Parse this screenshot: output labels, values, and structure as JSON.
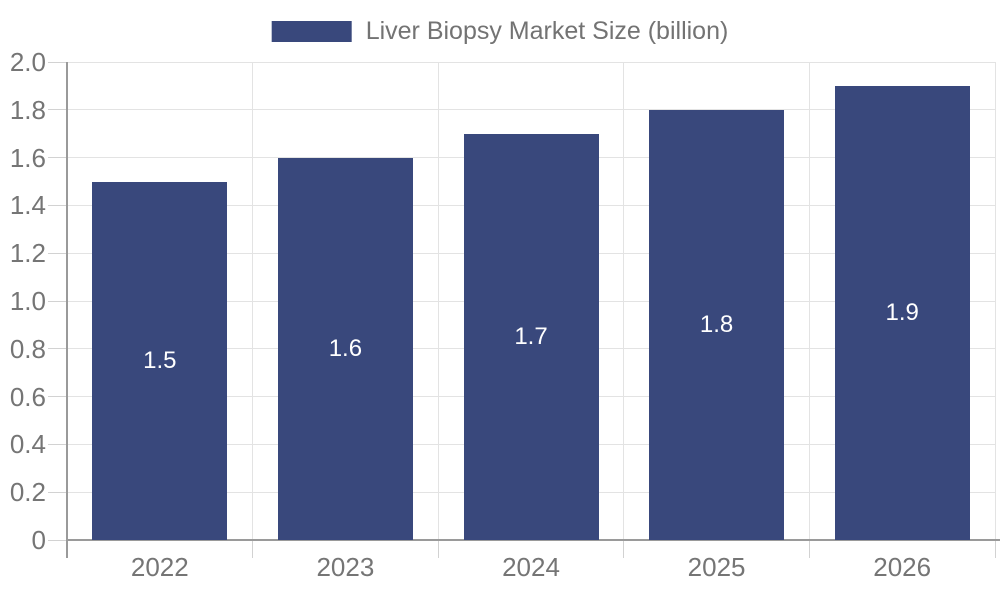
{
  "chart_data": {
    "type": "bar",
    "legend_label": "Liver Biopsy Market Size (billion)",
    "legend_position": "top-center",
    "categories": [
      "2022",
      "2023",
      "2024",
      "2025",
      "2026"
    ],
    "values": [
      1.5,
      1.6,
      1.7,
      1.8,
      1.9
    ],
    "bar_value_labels": [
      "1.5",
      "1.6",
      "1.7",
      "1.8",
      "1.9"
    ],
    "ylim": [
      0,
      2.0
    ],
    "ytick_values": [
      0,
      0.2,
      0.4,
      0.6,
      0.8,
      1.0,
      1.2,
      1.4,
      1.6,
      1.8,
      2.0
    ],
    "ytick_labels": [
      "0",
      "0.2",
      "0.4",
      "0.6",
      "0.8",
      "1.0",
      "1.2",
      "1.4",
      "1.6",
      "1.8",
      "2.0"
    ],
    "grid": true,
    "colors": {
      "bar": "#39487C",
      "axis": "#9a9a9a",
      "grid": "#e3e3e3",
      "tick": "#d2d2d2",
      "tick_label": "#757575",
      "legend_text": "#737373",
      "bar_label": "#ffffff",
      "background": "#ffffff"
    }
  }
}
